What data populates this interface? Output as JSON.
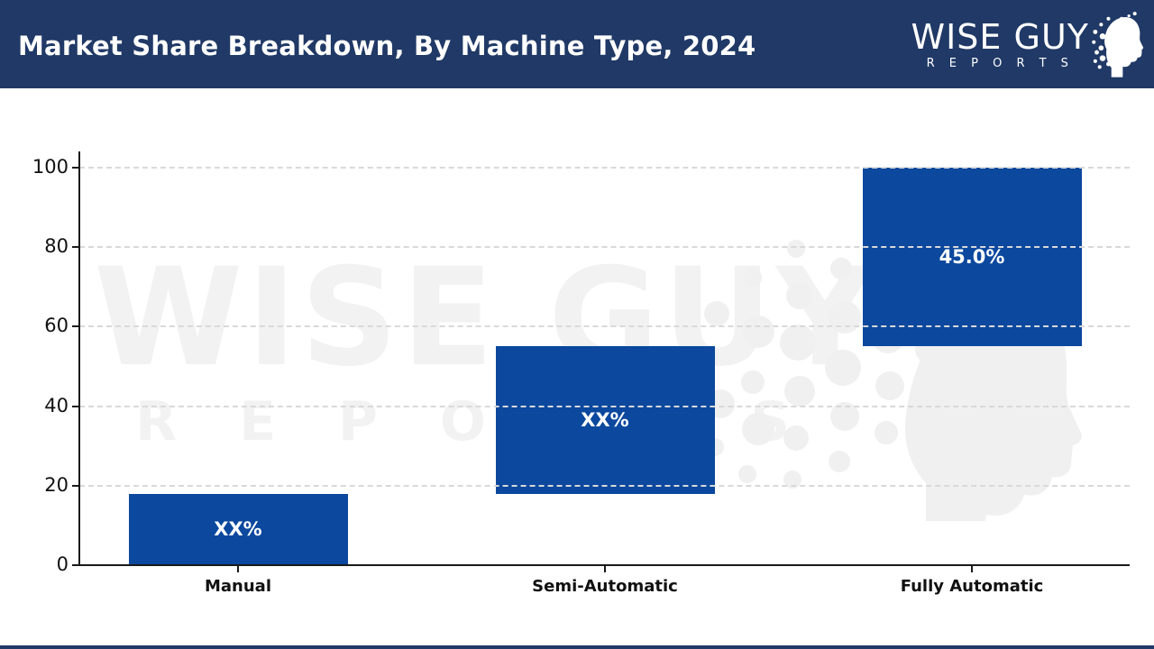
{
  "header": {
    "title": "Market Share Breakdown, By Machine Type, 2024",
    "logo": {
      "line1": "WISE GUY",
      "line2": "R E P O R T S"
    }
  },
  "watermark": {
    "line1": "WISE GUY",
    "line2": "R E P O R T S"
  },
  "colors": {
    "header_bg": "#203966",
    "bar": "#0b489e",
    "gridline": "#d9d9d9",
    "watermark": "#f2f2f2",
    "watermark_face": "#f0f0f0",
    "bar_label_text": "#ffffff"
  },
  "chart_data": {
    "type": "bar",
    "subtype": "waterfall-stacked-percentage",
    "title": "Market Share Breakdown, By Machine Type, 2024",
    "categories": [
      "Manual",
      "Semi-Automatic",
      "Fully Automatic"
    ],
    "series": [
      {
        "name": "Market Share",
        "segments": [
          {
            "category": "Manual",
            "start": 0,
            "end": 18,
            "label": "XX%"
          },
          {
            "category": "Semi-Automatic",
            "start": 18,
            "end": 55,
            "label": "XX%"
          },
          {
            "category": "Fully Automatic",
            "start": 55,
            "end": 100,
            "label": "45.0%"
          }
        ]
      }
    ],
    "xlabel": "",
    "ylabel": "",
    "ylim": [
      0,
      100
    ],
    "yticks": [
      0,
      20,
      40,
      60,
      80,
      100
    ],
    "grid": "horizontal-dashed, drawn above bars",
    "legend": "none",
    "bar_color": "#0b489e"
  }
}
